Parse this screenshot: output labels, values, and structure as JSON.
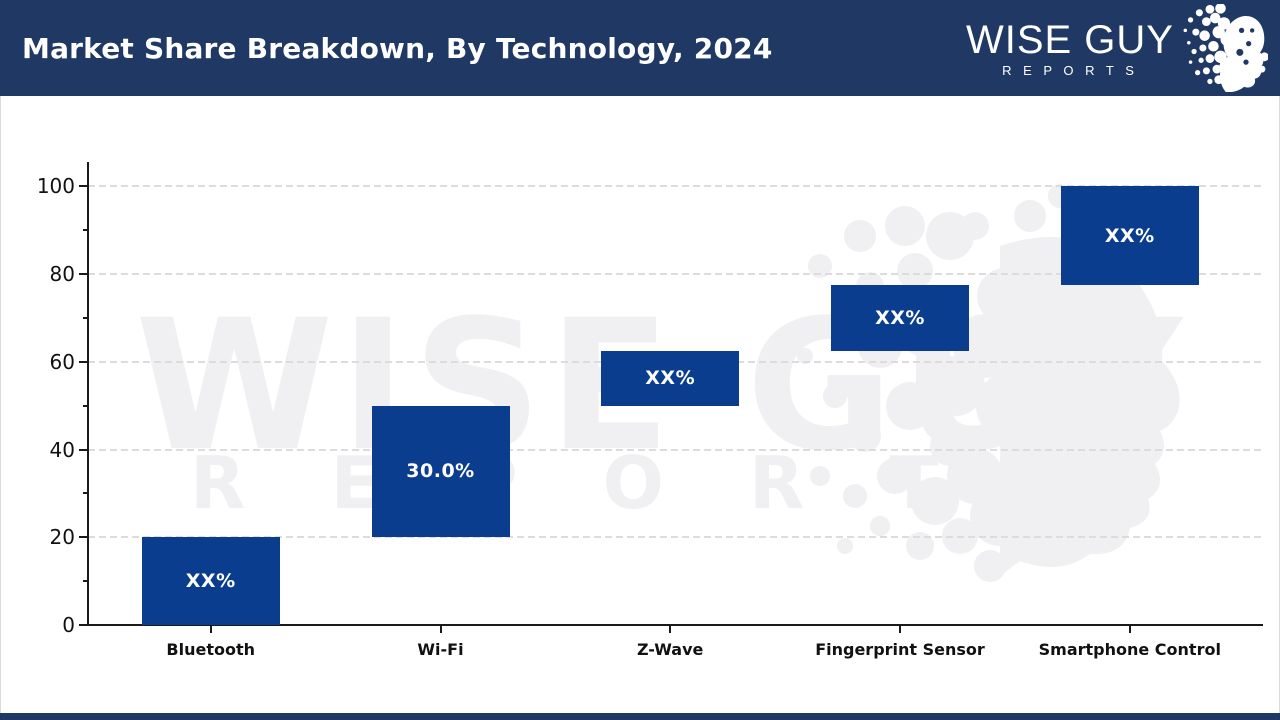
{
  "header": {
    "title": "Market Share Breakdown, By Technology, 2024",
    "logo": {
      "wordmark": "WISE GUY",
      "subtext": "R E P O R T S"
    }
  },
  "watermark": {
    "wordmark": "WISE GUY",
    "subtext": "R E P O R T S"
  },
  "colors": {
    "header_bg": "#1f3864",
    "footer_bg": "#1f3864",
    "bar": "#0b3d8e",
    "bar_label": "#ffffff",
    "grid": "#dcdcdc",
    "axis": "#1a1a1a",
    "tick_label": "#111111",
    "watermark": "#f0f0f2"
  },
  "chart_data": {
    "type": "bar",
    "subtype": "waterfall",
    "title": "Market Share Breakdown, By Technology, 2024",
    "categories": [
      "Bluetooth",
      "Wi-Fi",
      "Z-Wave",
      "Fingerprint Sensor",
      "Smartphone Control"
    ],
    "segments": [
      {
        "category": "Bluetooth",
        "start": 0,
        "end": 20,
        "value": 20,
        "label": "XX%"
      },
      {
        "category": "Wi-Fi",
        "start": 20,
        "end": 50,
        "value": 30,
        "label": "30.0%"
      },
      {
        "category": "Z-Wave",
        "start": 50,
        "end": 62.5,
        "value": 12.5,
        "label": "XX%"
      },
      {
        "category": "Fingerprint Sensor",
        "start": 62.5,
        "end": 77.5,
        "value": 15,
        "label": "XX%"
      },
      {
        "category": "Smartphone Control",
        "start": 77.5,
        "end": 100,
        "value": 22.5,
        "label": "XX%"
      }
    ],
    "xlabel": "",
    "ylabel": "",
    "ylim": [
      0,
      100
    ],
    "yticks": [
      0,
      20,
      40,
      60,
      80,
      100
    ],
    "yticks_minor": [
      10,
      30,
      50,
      70,
      90
    ],
    "grid": "horizontal-dashed",
    "legend": "none"
  }
}
